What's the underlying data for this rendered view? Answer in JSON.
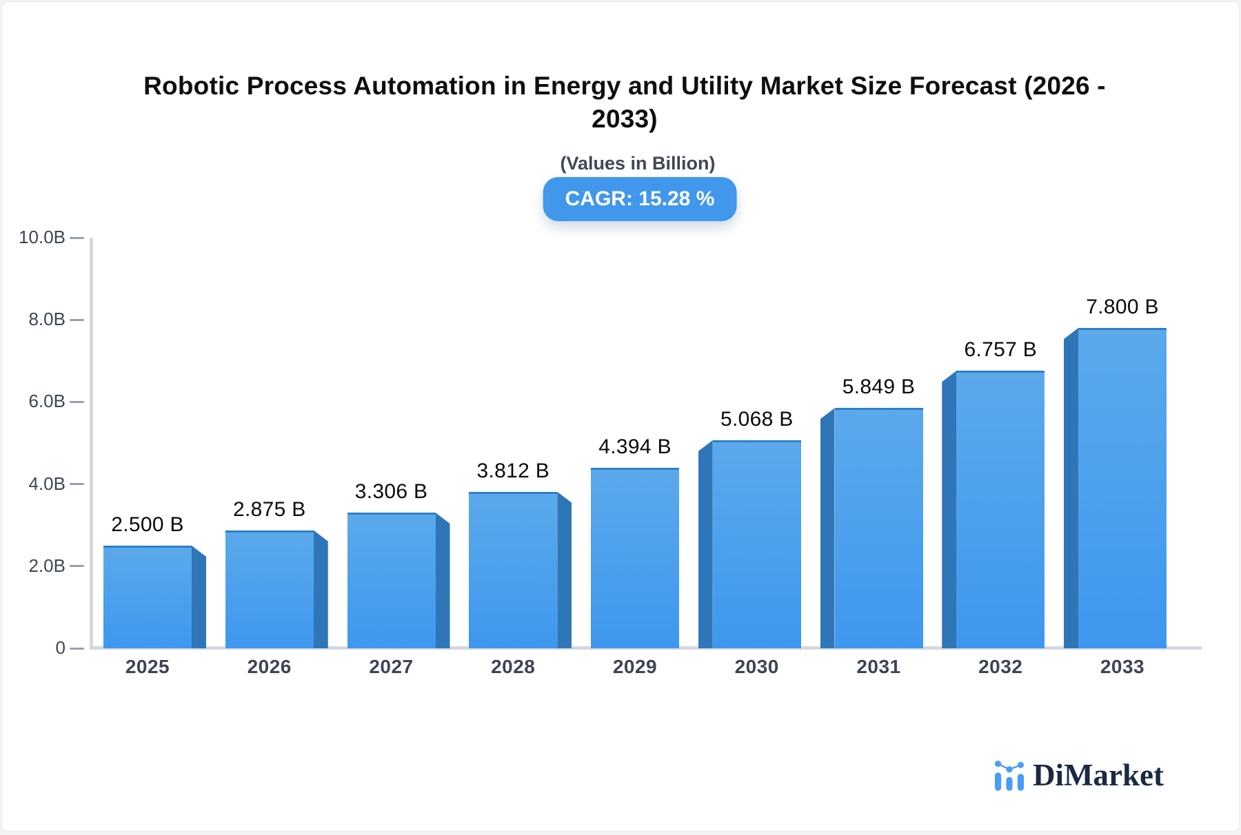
{
  "header": {
    "title_line1": "Robotic Process Automation in Energy and Utility Market Size Forecast (2026 -",
    "title_line2": "2033)",
    "subtitle": "(Values in Billion)",
    "cagr_badge": "CAGR: 15.28 %"
  },
  "chart_data": {
    "type": "bar",
    "title": "Robotic Process Automation in Energy and Utility Market Size Forecast (2026 - 2033)",
    "subtitle": "(Values in Billion)",
    "cagr_percent": 15.28,
    "categories": [
      "2025",
      "2026",
      "2027",
      "2028",
      "2029",
      "2030",
      "2031",
      "2032",
      "2033"
    ],
    "values": [
      2.5,
      2.875,
      3.306,
      3.812,
      4.394,
      5.068,
      5.849,
      6.757,
      7.8
    ],
    "value_labels": [
      "2.500 B",
      "2.875 B",
      "3.306 B",
      "3.812 B",
      "4.394 B",
      "5.068 B",
      "5.849 B",
      "6.757 B",
      "7.800 B"
    ],
    "y_ticks": [
      {
        "label": "10.0B",
        "value": 10
      },
      {
        "label": "8.0B",
        "value": 8
      },
      {
        "label": "6.0B",
        "value": 6
      },
      {
        "label": "4.0B",
        "value": 4
      },
      {
        "label": "2.0B",
        "value": 2
      },
      {
        "label": "0",
        "value": 0
      }
    ],
    "ylim": [
      0,
      10
    ],
    "xlabel": "",
    "ylabel": "",
    "grid": false,
    "legend": false,
    "style": "3d-perspective-bars"
  },
  "footer": {
    "logo_text": "DiMarket"
  },
  "colors": {
    "page_bg": "#F2F3F5",
    "card_bg": "#FFFFFF",
    "title_text": "#0E0E10",
    "subtitle_text": "#3F4756",
    "badge_bg": "#4197EC",
    "badge_text": "#FFFFFF",
    "bar_front_top": "#5BA9EB",
    "bar_front_bottom": "#3E97EF",
    "bar_top_edge": "#2E7FC8",
    "bar_side": "#2F76B8",
    "axis_line": "#D5D9DE",
    "tick_dash": "#98A1AB",
    "axis_text": "#3B4553",
    "value_text": "#0A0A0A",
    "logo_text": "#1B2942",
    "logo_icon": "#4A9CF5"
  }
}
